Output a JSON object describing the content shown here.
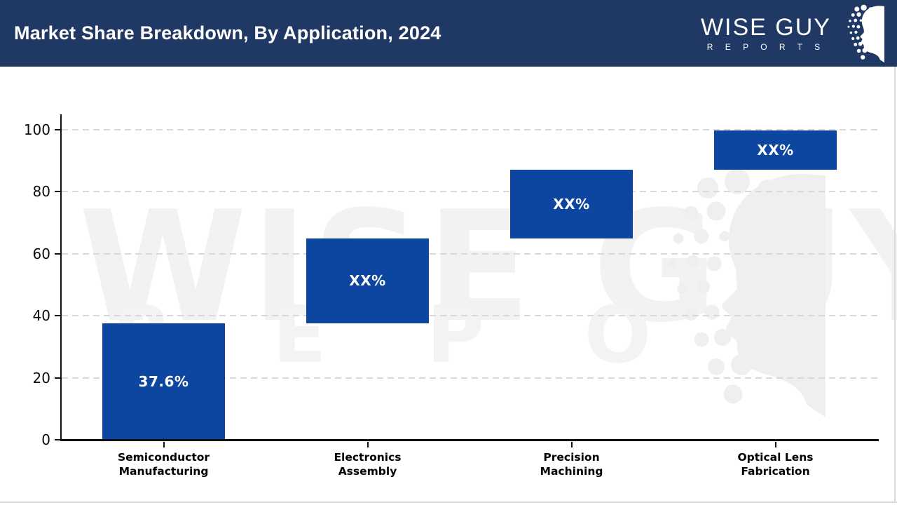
{
  "header": {
    "title": "Market Share Breakdown, By Application, 2024",
    "logo": {
      "name": "WISE GUY",
      "sub": "R E P O R T S"
    }
  },
  "watermark": {
    "name": "WISE GUY",
    "sub": "R E P O R T S"
  },
  "chart_data": {
    "type": "bar",
    "subtype": "waterfall",
    "title": "Market Share Breakdown, By Application, 2024",
    "categories": [
      "Semiconductor\nManufacturing",
      "Electronics\nAssembly",
      "Precision\nMachining",
      "Optical Lens\nFabrication"
    ],
    "segments": [
      {
        "category": "Semiconductor Manufacturing",
        "label": "37.6%",
        "start": 0,
        "end": 37.6,
        "value": 37.6
      },
      {
        "category": "Electronics Assembly",
        "label": "XX%",
        "start": 37.6,
        "end": 65.0,
        "value": 27.4
      },
      {
        "category": "Precision Machining",
        "label": "XX%",
        "start": 65.0,
        "end": 87.2,
        "value": 22.2
      },
      {
        "category": "Optical Lens Fabrication",
        "label": "XX%",
        "start": 87.2,
        "end": 99.7,
        "value": 12.5
      }
    ],
    "yticks": [
      0,
      20,
      40,
      60,
      80,
      100
    ],
    "ylim": [
      0,
      105
    ],
    "grid": true,
    "grid_style": "dashed",
    "legend": "none",
    "xlabel": "",
    "ylabel": "",
    "bar_color": "#0d46a0",
    "colors": {
      "header_bg": "#1f3864",
      "bar": "#0d46a0",
      "bar_label": "#ffffff",
      "grid": "#d9d9d9",
      "axis": "#111111",
      "watermark": "#f2f2f2"
    }
  }
}
